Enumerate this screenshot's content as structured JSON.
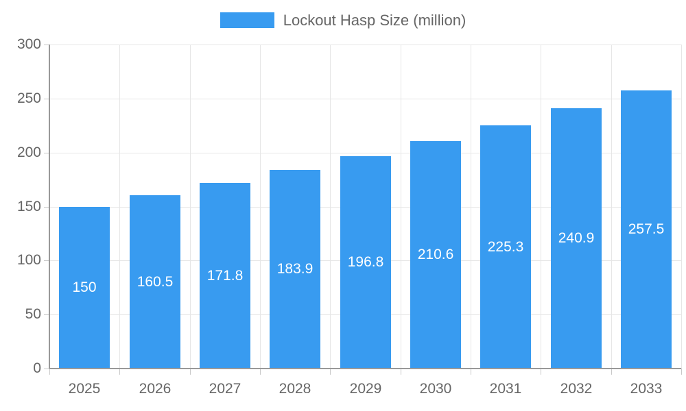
{
  "legend": {
    "label": "Lockout Hasp Size (million)"
  },
  "chart_data": {
    "type": "bar",
    "title": "Lockout Hasp Size (million)",
    "categories": [
      "2025",
      "2026",
      "2027",
      "2028",
      "2029",
      "2030",
      "2031",
      "2032",
      "2033"
    ],
    "values": [
      150,
      160.5,
      171.8,
      183.9,
      196.8,
      210.6,
      225.3,
      240.9,
      257.5
    ],
    "value_labels": [
      "150",
      "160.5",
      "171.8",
      "183.9",
      "196.8",
      "210.6",
      "225.3",
      "240.9",
      "257.5"
    ],
    "xlabel": "",
    "ylabel": "",
    "ylim": [
      0,
      300
    ],
    "yticks": [
      0,
      50,
      100,
      150,
      200,
      250,
      300
    ],
    "grid": true,
    "legend_position": "top",
    "colors": {
      "bar": "#389bf0",
      "value_label": "#ffffff",
      "axis_text": "#666666",
      "gridline": "#e6e6e6",
      "tick": "#c9c9c9",
      "axis_line": "#999999"
    }
  }
}
